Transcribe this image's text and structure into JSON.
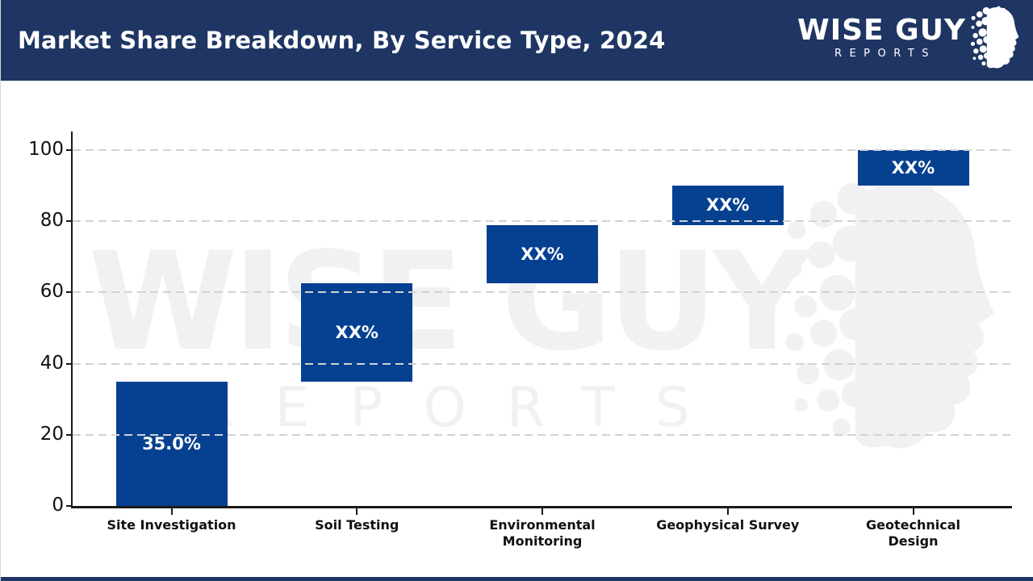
{
  "header": {
    "title": "Market Share Breakdown, By Service Type, 2024",
    "logo": {
      "line1": "WISE GUY",
      "line2": "REPORTS"
    }
  },
  "watermark": {
    "line1": "WISE GUY",
    "line2": "REPORTS"
  },
  "chart_data": {
    "type": "bar",
    "variant": "waterfall",
    "title": "Market Share Breakdown, By Service Type, 2024",
    "categories": [
      "Site Investigation",
      "Soil Testing",
      "Environmental\nMonitoring",
      "Geophysical Survey",
      "Geotechnical\nDesign"
    ],
    "series": [
      {
        "name": "Market share (%)",
        "values": [
          35.0,
          27.5,
          16.5,
          11.0,
          10.0
        ]
      }
    ],
    "bar_labels": [
      "35.0%",
      "XX%",
      "XX%",
      "XX%",
      "XX%"
    ],
    "xlabel": "",
    "ylabel": "",
    "ylim": [
      0,
      100
    ],
    "yticks": [
      0,
      20,
      40,
      60,
      80,
      100
    ],
    "grid": "dashed-horizontal",
    "legend": "none",
    "colors": {
      "bar": "#054091",
      "bar_label": "#ffffff",
      "header_bg": "#1f3664",
      "gridline": "#d2d2d2",
      "axis": "#1a1a1a",
      "watermark": "#f1f1f4"
    }
  }
}
